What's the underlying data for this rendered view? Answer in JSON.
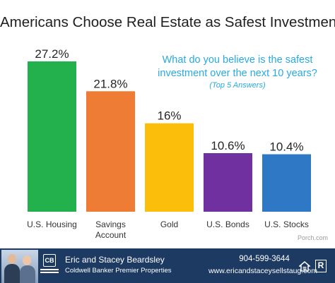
{
  "chart_data": {
    "type": "bar",
    "title": "Americans Choose Real Estate as Safest Investment",
    "subtitle": "What do you believe is the safest investment over the next 10 years?",
    "note": "(Top 5 Answers)",
    "categories": [
      "U.S. Housing",
      "Savings Account",
      "Gold",
      "U.S. Bonds",
      "U.S. Stocks"
    ],
    "category_lines": [
      [
        "U.S. Housing"
      ],
      [
        "Savings",
        "Account"
      ],
      [
        "Gold"
      ],
      [
        "U.S. Bonds"
      ],
      [
        "U.S. Stocks"
      ]
    ],
    "values": [
      27.2,
      21.8,
      16,
      10.6,
      10.4
    ],
    "value_labels": [
      "27.2%",
      "21.8%",
      "16%",
      "10.6%",
      "10.4%"
    ],
    "colors": [
      "#23b14d",
      "#ef7c35",
      "#fbbf0b",
      "#7030a0",
      "#2f78c5"
    ],
    "ylim": [
      0,
      27.2
    ],
    "grid": false,
    "source": "Porch.com"
  },
  "footer": {
    "agent_name": "Eric and Stacey Beardsley",
    "brokerage": "Coldwell Banker Premier Properties",
    "phone": "904-599-3644",
    "website": "www.ericandstaceysellstaug.com",
    "logo_text": "CB",
    "realtor_text": "R",
    "colors": {
      "background": "#1d3a63",
      "text": "#ffffff"
    }
  },
  "icons": [
    "agents-photo",
    "coldwell-banker-logo-icon",
    "equal-housing-icon",
    "realtor-icon"
  ]
}
